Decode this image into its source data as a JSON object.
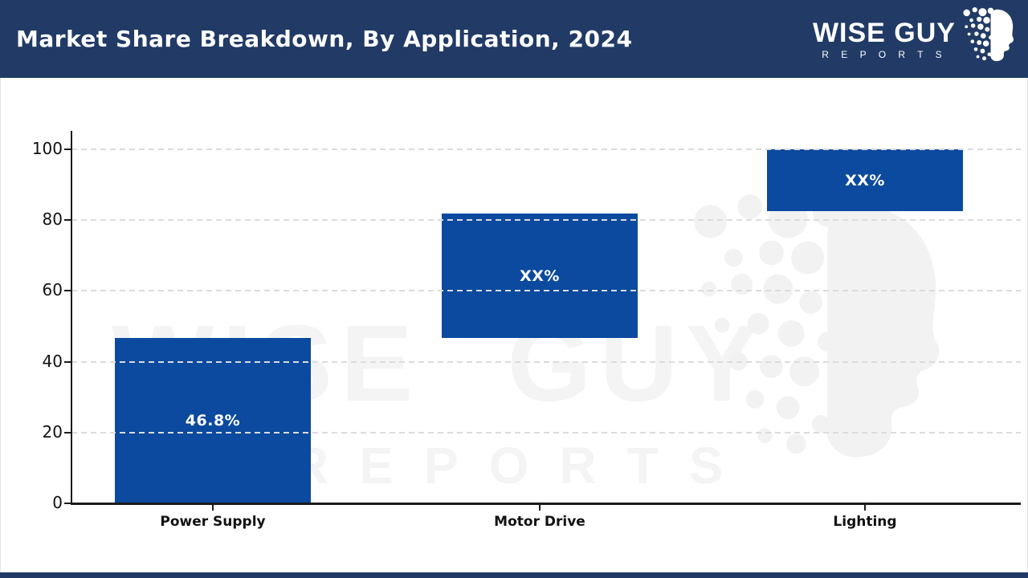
{
  "header": {
    "title": "Market Share Breakdown, By Application, 2024",
    "logo": {
      "line1": "WISE GUY",
      "line2": "R E P O R T S"
    }
  },
  "watermark": {
    "line1": "WISE GUY",
    "line2": "REPORTS"
  },
  "colors": {
    "header_bg": "#213a66",
    "bar": "#0b4a9e",
    "grid": "#dcdcdc",
    "axis": "#1a1a1a",
    "watermark": "#f4f4f4",
    "bar_label": "#ffffff"
  },
  "chart_data": {
    "type": "bar",
    "variant": "floating-segment-breakdown",
    "title": "Market Share Breakdown, By Application, 2024",
    "xlabel": "",
    "ylabel": "",
    "categories": [
      "Power Supply",
      "Motor Drive",
      "Lighting"
    ],
    "segments": [
      {
        "category": "Power Supply",
        "from": 0,
        "to": 46.8,
        "label": "46.8%"
      },
      {
        "category": "Motor Drive",
        "from": 46.8,
        "to": 81.9,
        "label": "XX%"
      },
      {
        "category": "Lighting",
        "from": 82.5,
        "to": 100,
        "label": "XX%"
      }
    ],
    "ylim": [
      0,
      100
    ],
    "yticks": [
      0,
      20,
      40,
      60,
      80,
      100
    ],
    "grid": "horizontal-dashed",
    "legend": "none",
    "bar_color": "#0b4a9e",
    "label_color": "#ffffff"
  }
}
